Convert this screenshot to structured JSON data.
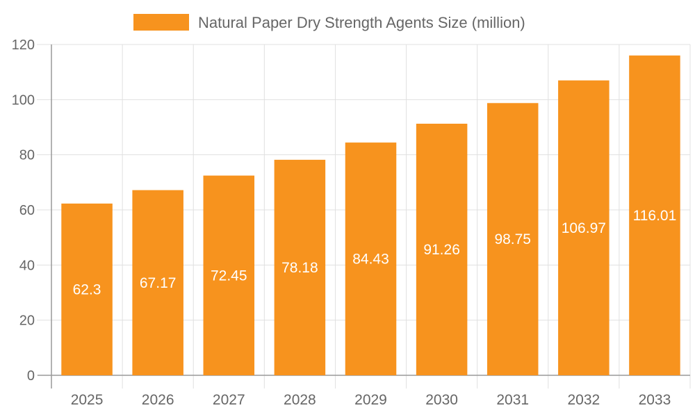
{
  "chart_data": {
    "type": "bar",
    "title": "",
    "xlabel": "",
    "ylabel": "",
    "categories": [
      "2025",
      "2026",
      "2027",
      "2028",
      "2029",
      "2030",
      "2031",
      "2032",
      "2033"
    ],
    "series": [
      {
        "name": "Natural Paper Dry Strength Agents Size (million)",
        "values": [
          62.3,
          67.17,
          72.45,
          78.18,
          84.43,
          91.26,
          98.75,
          106.97,
          116.01
        ],
        "color": "#F7931E"
      }
    ],
    "ylim": [
      0,
      120
    ],
    "yticks": [
      0,
      20,
      40,
      60,
      80,
      100,
      120
    ],
    "grid": true,
    "legend": "top-center",
    "data_labels": true
  }
}
